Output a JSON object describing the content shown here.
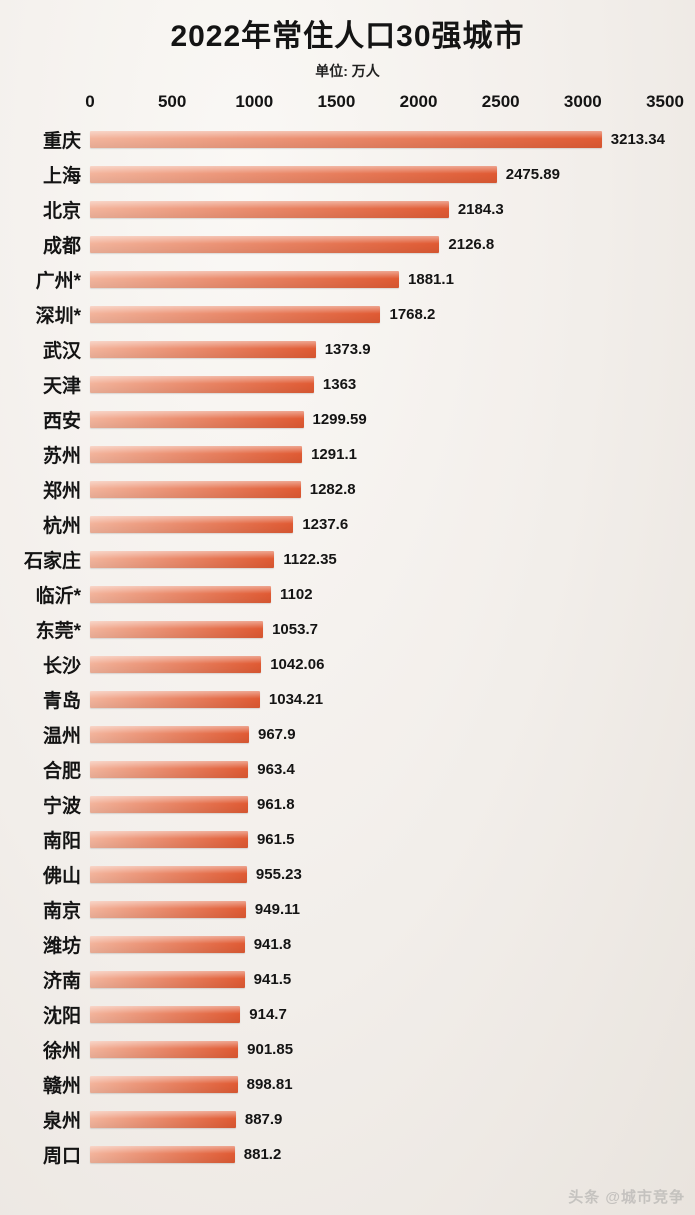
{
  "chart_data": {
    "type": "bar",
    "orientation": "horizontal",
    "title": "2022年常住人口30强城市",
    "unit_label": "单位: 万人",
    "xlabel": "",
    "ylabel": "",
    "xlim": [
      0,
      3500
    ],
    "x_ticks": [
      0,
      500,
      1000,
      1500,
      2000,
      2500,
      3000,
      3500
    ],
    "grid": false,
    "legend": false,
    "categories": [
      "重庆",
      "上海",
      "北京",
      "成都",
      "广州*",
      "深圳*",
      "武汉",
      "天津",
      "西安",
      "苏州",
      "郑州",
      "杭州",
      "石家庄",
      "临沂*",
      "东莞*",
      "长沙",
      "青岛",
      "温州",
      "合肥",
      "宁波",
      "南阳",
      "佛山",
      "南京",
      "潍坊",
      "济南",
      "沈阳",
      "徐州",
      "赣州",
      "泉州",
      "周口"
    ],
    "values": [
      3213.34,
      2475.89,
      2184.3,
      2126.8,
      1881.1,
      1768.2,
      1373.9,
      1363,
      1299.59,
      1291.1,
      1282.8,
      1237.6,
      1122.35,
      1102,
      1053.7,
      1042.06,
      1034.21,
      967.9,
      963.4,
      961.8,
      961.5,
      955.23,
      949.11,
      941.8,
      941.5,
      914.7,
      901.85,
      898.81,
      887.9,
      881.2
    ],
    "value_labels": [
      "3213.34",
      "2475.89",
      "2184.3",
      "2126.8",
      "1881.1",
      "1768.2",
      "1373.9",
      "1363",
      "1299.59",
      "1291.1",
      "1282.8",
      "1237.6",
      "1122.35",
      "1102",
      "1053.7",
      "1042.06",
      "1034.21",
      "967.9",
      "963.4",
      "961.8",
      "961.5",
      "955.23",
      "949.11",
      "941.8",
      "941.5",
      "914.7",
      "901.85",
      "898.81",
      "887.9",
      "881.2"
    ],
    "bar_color_start": "#f3b49c",
    "bar_color_end": "#e05a33"
  },
  "watermark": "头条 @城市竞争"
}
